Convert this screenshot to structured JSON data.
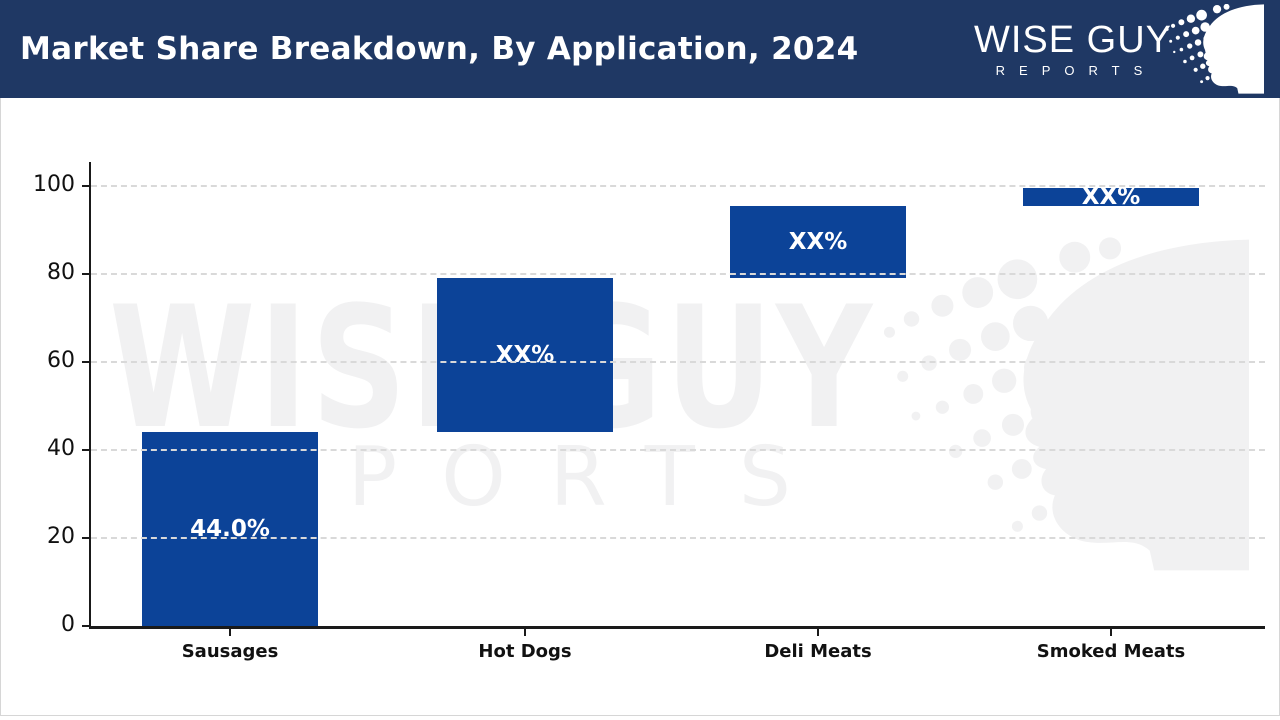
{
  "header": {
    "title": "Market Share Breakdown, By Application, 2024",
    "logo": {
      "brand_line1": "WISE GUY",
      "brand_line2": "REPORTS"
    }
  },
  "watermark": {
    "line1": "WISE GUY",
    "line2": "REPORTS"
  },
  "colors": {
    "header_bg": "#1f3864",
    "bar_blue": "#0c4398",
    "grid": "#d9d9d9",
    "axis": "#1a1a1a",
    "title_text": "#ffffff",
    "bar_label_text": "#ffffff",
    "watermark": "#f1f1f2"
  },
  "chart_data": {
    "type": "bar",
    "subtype": "waterfall",
    "title": "Market Share Breakdown, By Application, 2024",
    "categories": [
      "Sausages",
      "Hot Dogs",
      "Deli Meats",
      "Smoked Meats"
    ],
    "segments": [
      {
        "category": "Sausages",
        "label": "44.0%",
        "start": 0,
        "end": 44
      },
      {
        "category": "Hot Dogs",
        "label": "XX%",
        "start": 44,
        "end": 79
      },
      {
        "category": "Deli Meats",
        "label": "XX%",
        "start": 79,
        "end": 95.5
      },
      {
        "category": "Smoked Meats",
        "label": "XX%",
        "start": 95.5,
        "end": 99.5
      }
    ],
    "yticks": [
      0,
      20,
      40,
      60,
      80,
      100
    ],
    "ylim": [
      0,
      105
    ],
    "xlabel": "",
    "ylabel": "",
    "grid": "horizontal-dashed",
    "legend": "none",
    "bar_color": "#0c4398"
  }
}
